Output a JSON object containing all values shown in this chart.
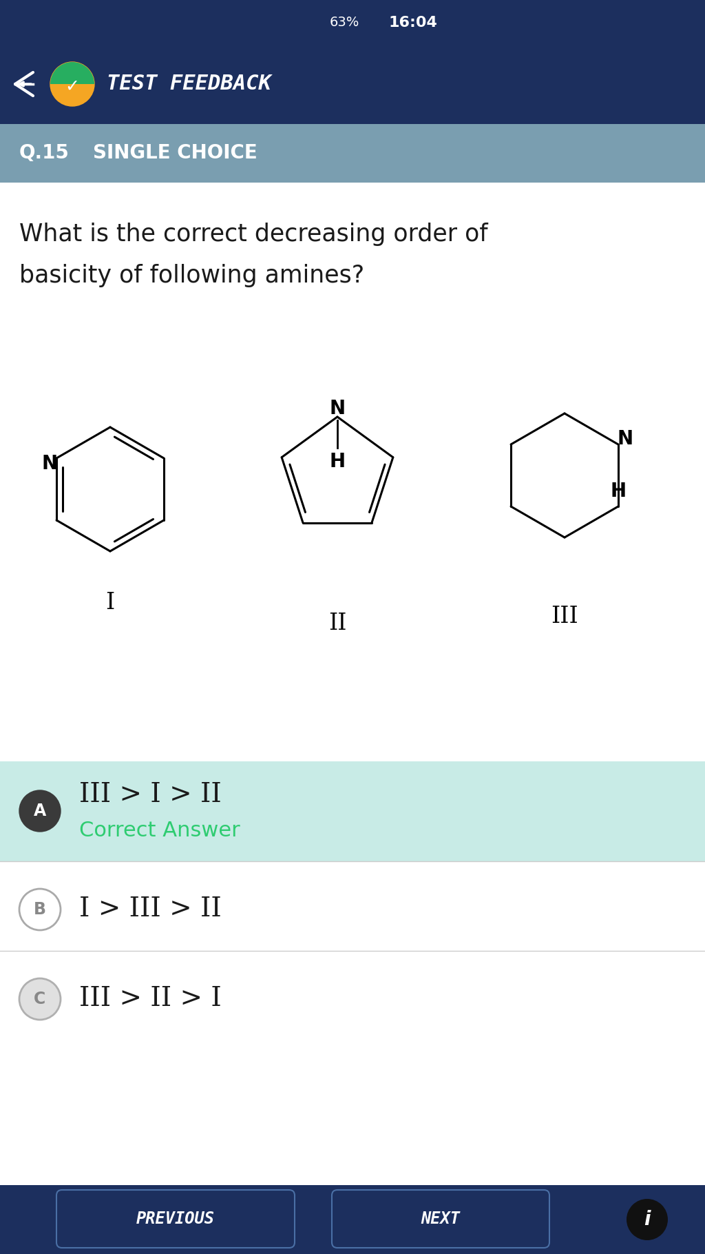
{
  "bg_top": "#1c2f5e",
  "bg_header_bar": "#7a9eb0",
  "bg_white": "#ffffff",
  "bg_option_a": "#c8ebe6",
  "bg_option_b": "#ffffff",
  "bg_bottom_bar": "#1c2f5e",
  "title_text": "TEST FEEDBACK",
  "q_label": "Q.15",
  "q_type": "SINGLE CHOICE",
  "question_line1": "What is the correct decreasing order of",
  "question_line2": "basicity of following amines?",
  "option_a_text": "III > I > II",
  "option_a_sublabel": "Correct Answer",
  "option_a_sublabel_color": "#2ecc71",
  "option_b_text": "I > III > II",
  "option_c_text": "III > II > I",
  "btn_previous": "PREVIOUS",
  "btn_next": "NEXT",
  "text_color_dark": "#1a1a1a",
  "text_color_white": "#ffffff",
  "circle_a_bg": "#3a3a3a",
  "circle_b_border": "#aaaaaa",
  "logo_orange": "#f5a623",
  "logo_green": "#27ae60"
}
